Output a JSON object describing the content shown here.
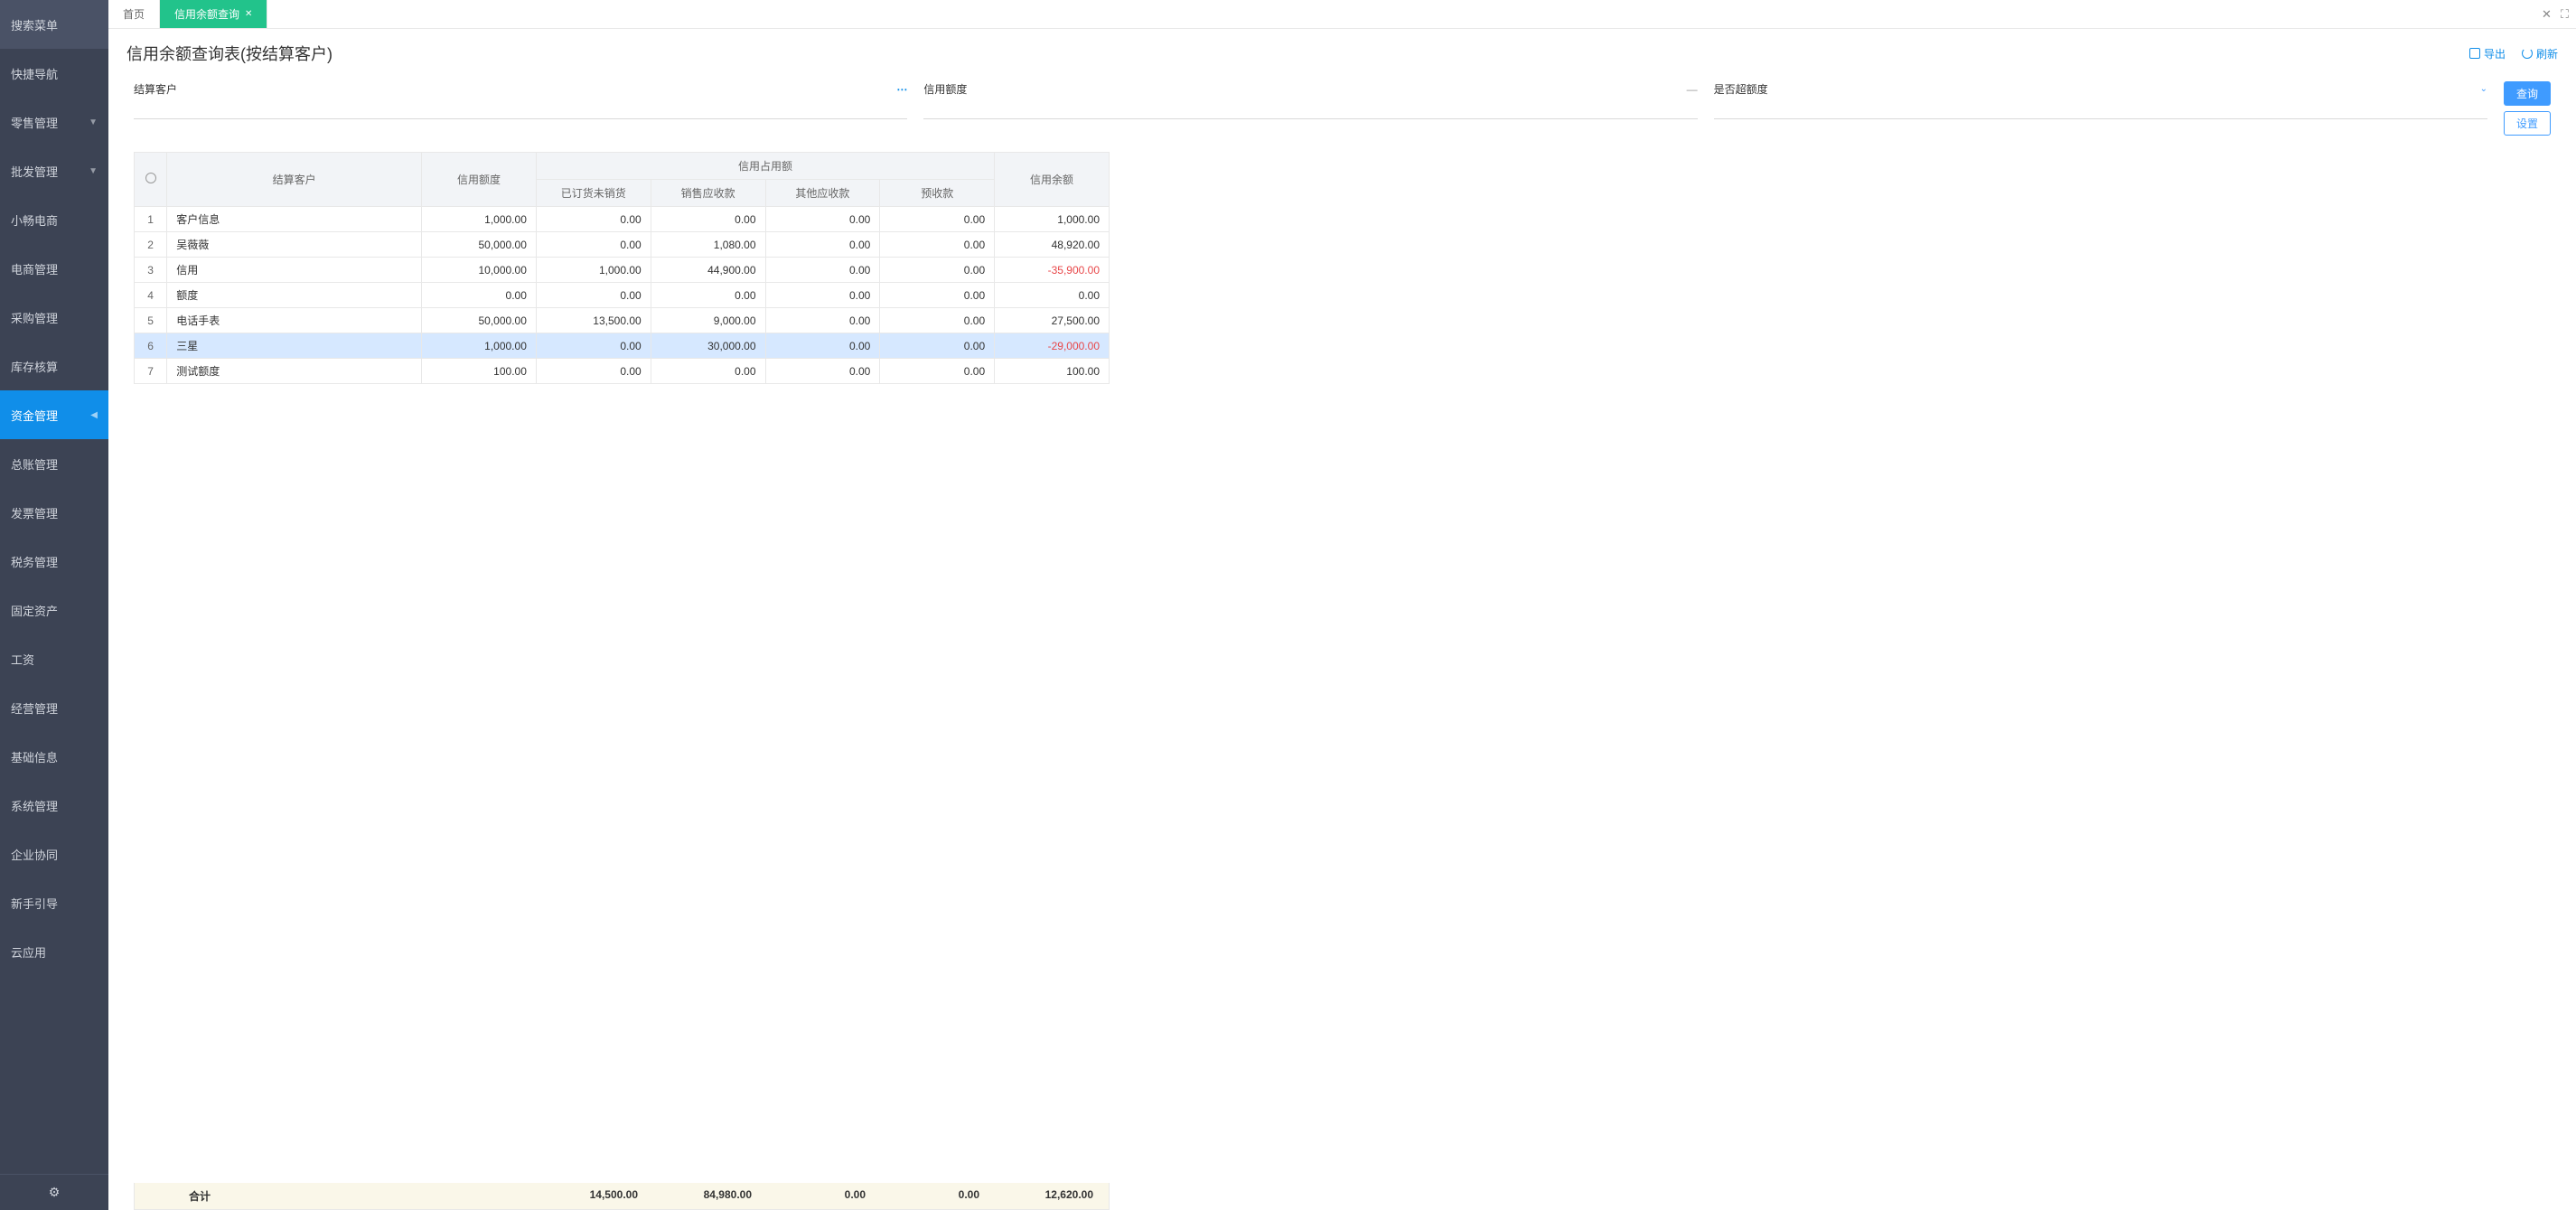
{
  "sidebar": {
    "items": [
      {
        "label": "搜索菜单",
        "arrow": ""
      },
      {
        "label": "快捷导航",
        "arrow": ""
      },
      {
        "label": "零售管理",
        "arrow": "▼"
      },
      {
        "label": "批发管理",
        "arrow": "▼"
      },
      {
        "label": "小畅电商",
        "arrow": ""
      },
      {
        "label": "电商管理",
        "arrow": ""
      },
      {
        "label": "采购管理",
        "arrow": ""
      },
      {
        "label": "库存核算",
        "arrow": ""
      },
      {
        "label": "资金管理",
        "arrow": "◀",
        "active": true
      },
      {
        "label": "总账管理",
        "arrow": ""
      },
      {
        "label": "发票管理",
        "arrow": ""
      },
      {
        "label": "税务管理",
        "arrow": ""
      },
      {
        "label": "固定资产",
        "arrow": ""
      },
      {
        "label": "工资",
        "arrow": ""
      },
      {
        "label": "经营管理",
        "arrow": ""
      },
      {
        "label": "基础信息",
        "arrow": ""
      },
      {
        "label": "系统管理",
        "arrow": ""
      },
      {
        "label": "企业协同",
        "arrow": ""
      },
      {
        "label": "新手引导",
        "arrow": ""
      },
      {
        "label": "云应用",
        "arrow": ""
      }
    ]
  },
  "tabs": {
    "home": "首页",
    "active": "信用余额查询"
  },
  "page": {
    "title": "信用余额查询表(按结算客户)",
    "export": "导出",
    "refresh": "刷新"
  },
  "filters": {
    "f1_label": "结算客户",
    "f2_label": "信用额度",
    "f3_label": "是否超额度",
    "query": "查询",
    "settings": "设置"
  },
  "table": {
    "headers": {
      "customer": "结算客户",
      "credit": "信用额度",
      "occupy": "信用占用额",
      "sub1": "已订货未销货",
      "sub2": "销售应收款",
      "sub3": "其他应收款",
      "sub4": "预收款",
      "balance": "信用余额"
    },
    "rows": [
      {
        "idx": "1",
        "name": "客户信息",
        "credit": "1,000.00",
        "c1": "0.00",
        "c2": "0.00",
        "c3": "0.00",
        "c4": "0.00",
        "bal": "1,000.00"
      },
      {
        "idx": "2",
        "name": "吴薇薇",
        "credit": "50,000.00",
        "c1": "0.00",
        "c2": "1,080.00",
        "c3": "0.00",
        "c4": "0.00",
        "bal": "48,920.00"
      },
      {
        "idx": "3",
        "name": "信用",
        "credit": "10,000.00",
        "c1": "1,000.00",
        "c2": "44,900.00",
        "c3": "0.00",
        "c4": "0.00",
        "bal": "-35,900.00",
        "neg": true
      },
      {
        "idx": "4",
        "name": "额度",
        "credit": "0.00",
        "c1": "0.00",
        "c2": "0.00",
        "c3": "0.00",
        "c4": "0.00",
        "bal": "0.00"
      },
      {
        "idx": "5",
        "name": "电话手表",
        "credit": "50,000.00",
        "c1": "13,500.00",
        "c2": "9,000.00",
        "c3": "0.00",
        "c4": "0.00",
        "bal": "27,500.00"
      },
      {
        "idx": "6",
        "name": "三星",
        "credit": "1,000.00",
        "c1": "0.00",
        "c2": "30,000.00",
        "c3": "0.00",
        "c4": "0.00",
        "bal": "-29,000.00",
        "neg": true,
        "hl": true
      },
      {
        "idx": "7",
        "name": "测试额度",
        "credit": "100.00",
        "c1": "0.00",
        "c2": "0.00",
        "c3": "0.00",
        "c4": "0.00",
        "bal": "100.00"
      }
    ],
    "footer": {
      "label": "合计",
      "c1": "14,500.00",
      "c2": "84,980.00",
      "c3": "0.00",
      "c4": "0.00",
      "bal": "12,620.00"
    }
  },
  "colors": {
    "sidebar_bg": "#3c4354",
    "active_bg": "#108ee9",
    "tab_active": "#22c38b",
    "primary": "#3f9bff",
    "negative": "#e84749",
    "footer_bg": "#faf7e9"
  }
}
